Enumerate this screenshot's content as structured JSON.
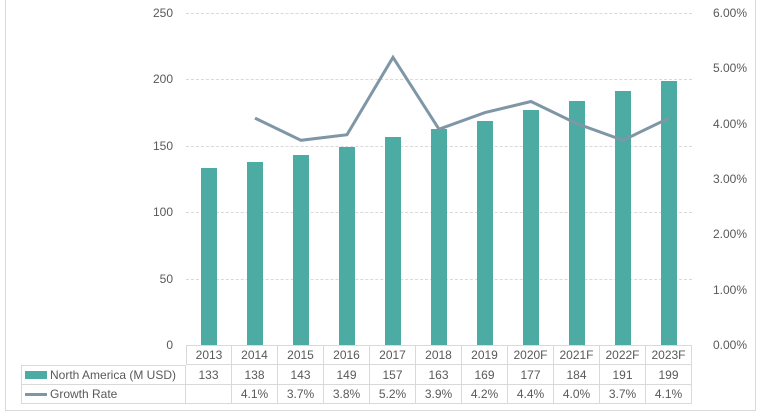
{
  "chart_data": {
    "type": "bar+line",
    "title": "",
    "categories": [
      "2013",
      "2014",
      "2015",
      "2016",
      "2017",
      "2018",
      "2019",
      "2020F",
      "2021F",
      "2022F",
      "2023F"
    ],
    "series": [
      {
        "name": "North America (M USD)",
        "type": "bar",
        "axis": "left",
        "values": [
          133,
          138,
          143,
          149,
          157,
          163,
          169,
          177,
          184,
          191,
          199
        ]
      },
      {
        "name": "Growth Rate",
        "type": "line",
        "axis": "right",
        "values": [
          null,
          4.1,
          3.7,
          3.8,
          5.2,
          3.9,
          4.2,
          4.4,
          4.0,
          3.7,
          4.1
        ]
      }
    ],
    "left_axis": {
      "min": 0,
      "max": 250,
      "step": 50,
      "ticks": [
        "250",
        "200",
        "150",
        "100",
        "50",
        "0"
      ]
    },
    "right_axis": {
      "min": 0,
      "max": 6,
      "step": 1,
      "ticks": [
        "6.00%",
        "5.00%",
        "4.00%",
        "3.00%",
        "2.00%",
        "1.00%",
        "0.00%"
      ]
    },
    "grid": true,
    "legend_position": "table-left",
    "colors": {
      "bar": "#4caba2",
      "line": "#7f96a6",
      "grid": "#d9d9d9",
      "text": "#595959",
      "table_border": "#d9d9d9"
    }
  },
  "table": {
    "legend": [
      {
        "label": "North America (M USD)",
        "swatch": "bar"
      },
      {
        "label": "Growth Rate",
        "swatch": "line"
      }
    ],
    "header": [
      "2013",
      "2014",
      "2015",
      "2016",
      "2017",
      "2018",
      "2019",
      "2020F",
      "2021F",
      "2022F",
      "2023F"
    ],
    "values_row": [
      "133",
      "138",
      "143",
      "149",
      "157",
      "163",
      "169",
      "177",
      "184",
      "191",
      "199"
    ],
    "growth_row": [
      "",
      "4.1%",
      "3.7%",
      "3.8%",
      "5.2%",
      "3.9%",
      "4.2%",
      "4.4%",
      "4.0%",
      "3.7%",
      "4.1%"
    ]
  }
}
